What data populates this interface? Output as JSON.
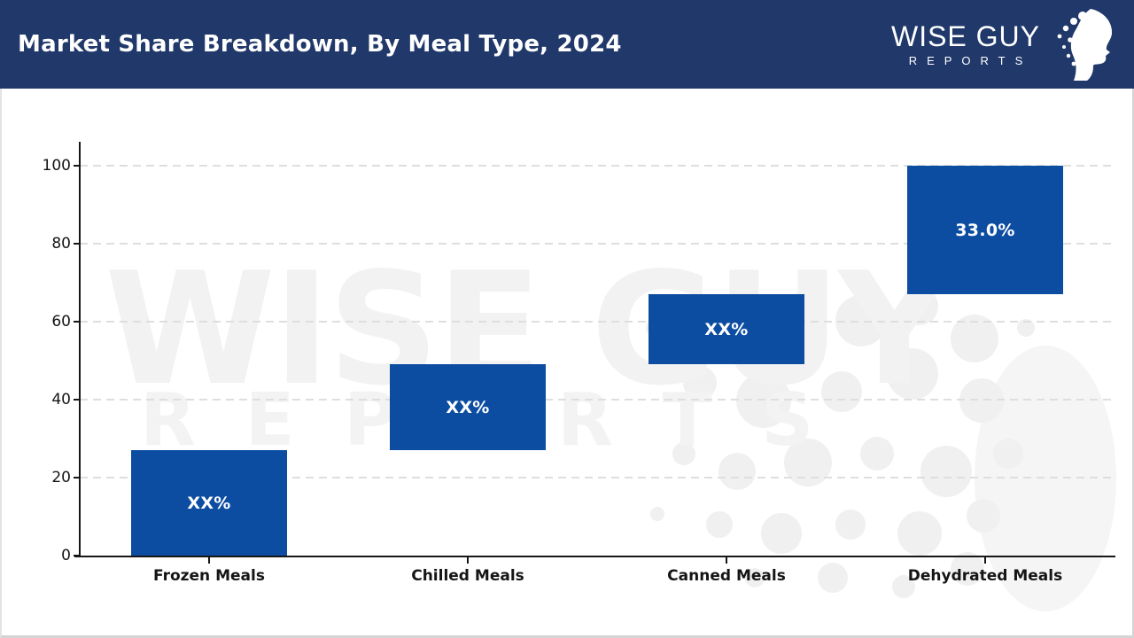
{
  "header": {
    "title": "Market Share Breakdown, By Meal Type, 2024",
    "bg_color": "#21386b",
    "logo": {
      "line1": "WISE GUY",
      "line2": "REPORTS"
    }
  },
  "watermark": {
    "line1": "WISE GUY",
    "line2": "R E P O R T S"
  },
  "chart_data": {
    "type": "bar",
    "subtype": "waterfall",
    "title": "Market Share Breakdown, By Meal Type, 2024",
    "categories": [
      "Frozen Meals",
      "Chilled Meals",
      "Canned Meals",
      "Dehydrated Meals"
    ],
    "bars": [
      {
        "category": "Frozen Meals",
        "start": 0,
        "end": 27,
        "value": 27,
        "label": "XX%"
      },
      {
        "category": "Chilled Meals",
        "start": 27,
        "end": 49,
        "value": 22,
        "label": "XX%"
      },
      {
        "category": "Canned Meals",
        "start": 49,
        "end": 67,
        "value": 18,
        "label": "XX%"
      },
      {
        "category": "Dehydrated Meals",
        "start": 67,
        "end": 100,
        "value": 33,
        "label": "33.0%"
      }
    ],
    "yticks": [
      0,
      20,
      40,
      60,
      80,
      100
    ],
    "ylim": [
      0,
      106
    ],
    "xlabel": "",
    "ylabel": "",
    "bar_color": "#0c4da2",
    "grid": "horizontal-dashed",
    "gridline_color": "#dedede",
    "legend": "none"
  }
}
